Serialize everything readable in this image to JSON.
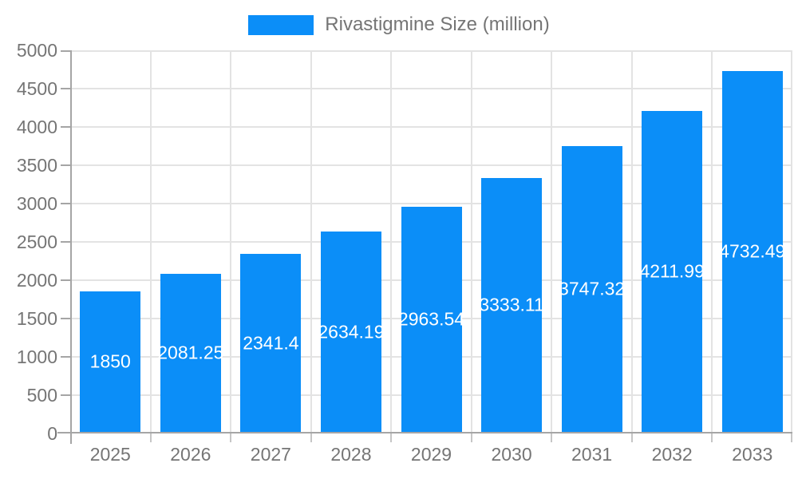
{
  "legend": {
    "position": "top",
    "items": [
      {
        "label": "Rivastigmine Size (million)",
        "color": "#0b8ef8"
      }
    ]
  },
  "chart_data": {
    "type": "bar",
    "title": "Rivastigmine Size (million)",
    "categories": [
      "2025",
      "2026",
      "2027",
      "2028",
      "2029",
      "2030",
      "2031",
      "2032",
      "2033"
    ],
    "series": [
      {
        "name": "Rivastigmine Size (million)",
        "color": "#0b8ef8",
        "values": [
          1850,
          2081.25,
          2341.4,
          2634.19,
          2963.54,
          3333.11,
          3747.32,
          4211.99,
          4732.49
        ],
        "value_labels": [
          "1850",
          "2081.25",
          "2341.4",
          "2634.19",
          "2963.54",
          "3333.11",
          "3747.32",
          "4211.99",
          "4732.49"
        ]
      }
    ],
    "xlabel": "",
    "ylabel": "",
    "ylim": [
      0,
      5000
    ],
    "yticks": [
      0,
      500,
      1000,
      1500,
      2000,
      2500,
      3000,
      3500,
      4000,
      4500,
      5000
    ],
    "grid": true,
    "legend_position": "top",
    "value_label_position": "center",
    "value_label_color": "#ffffff"
  },
  "colors": {
    "background": "#ffffff",
    "bar": "#0b8ef8",
    "grid": "#e3e3e3",
    "axis": "#a5a5a5",
    "tick_mark": "#c6c6c6",
    "tick_text": "#757575"
  }
}
